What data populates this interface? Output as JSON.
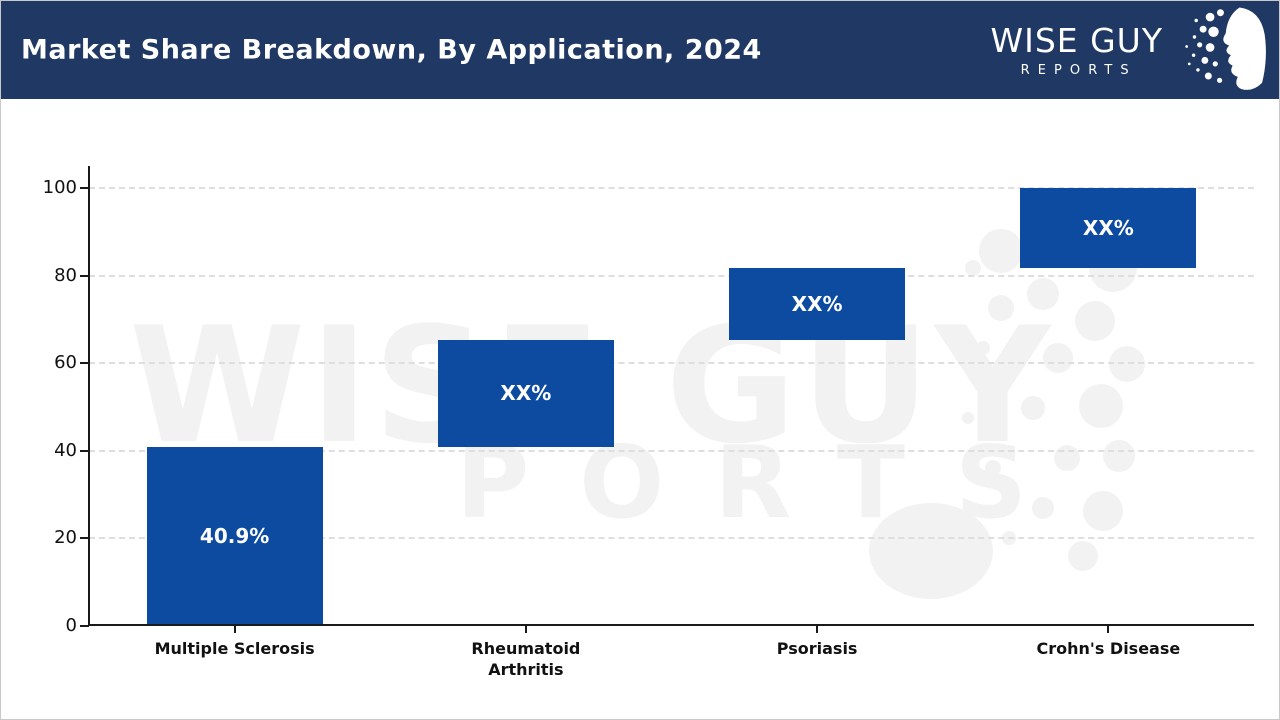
{
  "header": {
    "title": "Market Share Breakdown, By Application, 2024",
    "bg_color": "#1f3864",
    "logo": {
      "wordmark": "WISE GUY",
      "subtext": "REPORTS"
    }
  },
  "watermark": {
    "line1": "WISE GUY",
    "line2": "PORTS"
  },
  "chart_data": {
    "type": "bar",
    "subtype": "waterfall-stacked-percentage",
    "title": "Market Share Breakdown, By Application, 2024",
    "categories": [
      "Multiple Sclerosis",
      "Rheumatoid Arthritis",
      "Psoriasis",
      "Crohn's Disease"
    ],
    "category_label_lines": [
      [
        "Multiple Sclerosis"
      ],
      [
        "Rheumatoid",
        "Arthritis"
      ],
      [
        "Psoriasis"
      ],
      [
        "Crohn's Disease"
      ]
    ],
    "segments": [
      {
        "category": "Multiple Sclerosis",
        "start": 0,
        "end": 40.9,
        "label": "40.9%"
      },
      {
        "category": "Rheumatoid Arthritis",
        "start": 40.9,
        "end": 65.4,
        "label": "XX%"
      },
      {
        "category": "Psoriasis",
        "start": 65.4,
        "end": 81.8,
        "label": "XX%"
      },
      {
        "category": "Crohn's Disease",
        "start": 81.8,
        "end": 100,
        "label": "XX%"
      }
    ],
    "xlabel": "",
    "ylabel": "",
    "ylim": [
      0,
      100
    ],
    "y_ticks": [
      0,
      20,
      40,
      60,
      80,
      100
    ],
    "grid": "horizontal-dashed",
    "legend": null,
    "bar_color": "#0d4ba1",
    "value_label_color": "#ffffff"
  }
}
